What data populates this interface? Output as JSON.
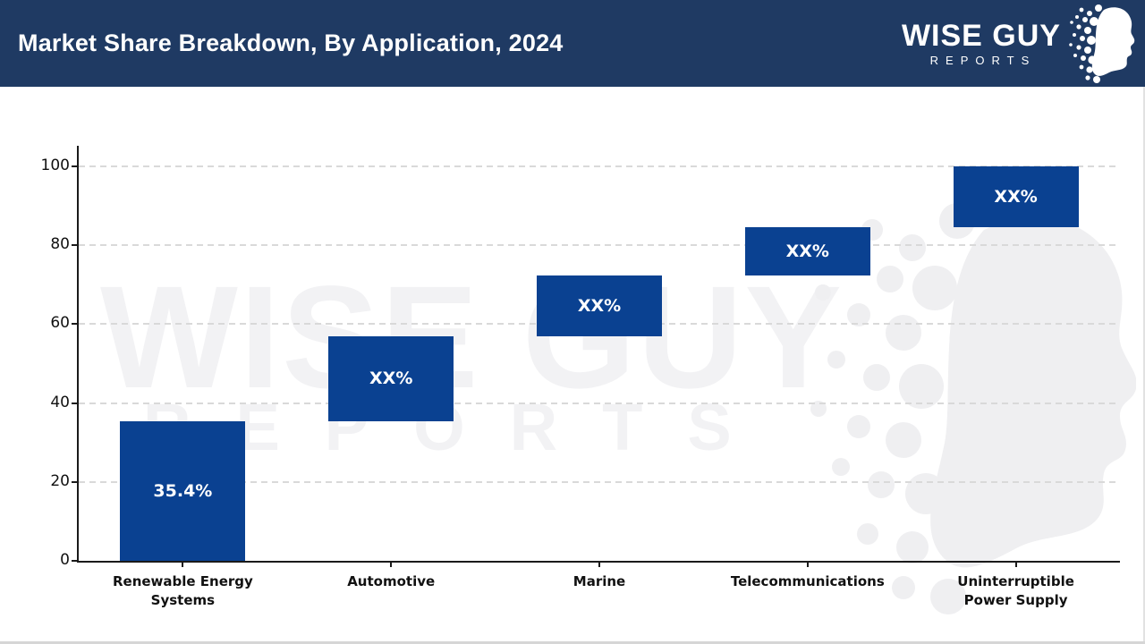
{
  "header": {
    "title": "Market Share Breakdown, By Application, 2024",
    "logo": {
      "line1": "WISE GUY",
      "line2": "REPORTS"
    }
  },
  "watermark": {
    "line1": "WISE GUY",
    "line2": "REPORTS"
  },
  "chart_data": {
    "type": "bar",
    "subtype": "floating-waterfall",
    "title": "Market Share Breakdown, By Application, 2024",
    "categories": [
      [
        "Renewable Energy",
        "Systems"
      ],
      [
        "Automotive"
      ],
      [
        "Marine"
      ],
      [
        "Telecommunications"
      ],
      [
        "Uninterruptible",
        "Power Supply"
      ]
    ],
    "series": [
      {
        "name": "Market Share (%)",
        "starts": [
          0,
          35.4,
          57.0,
          72.4,
          84.6
        ],
        "ends": [
          35.4,
          57.0,
          72.4,
          84.6,
          100
        ],
        "values": [
          35.4,
          21.6,
          15.4,
          12.2,
          15.4
        ],
        "labels": [
          "35.4%",
          "XX%",
          "XX%",
          "XX%",
          "XX%"
        ]
      }
    ],
    "xlabel": "",
    "ylabel": "",
    "ylim": [
      0,
      100
    ],
    "yticks": [
      0,
      20,
      40,
      60,
      80,
      100
    ],
    "grid": "horizontal-dashed",
    "legend": "none",
    "bar_color": "#0a4191",
    "bar_label_color": "#ffffff",
    "header_color": "#1f3a63",
    "gridline_color": "#d9d9d9",
    "watermark_color": "#f2f2f4"
  }
}
